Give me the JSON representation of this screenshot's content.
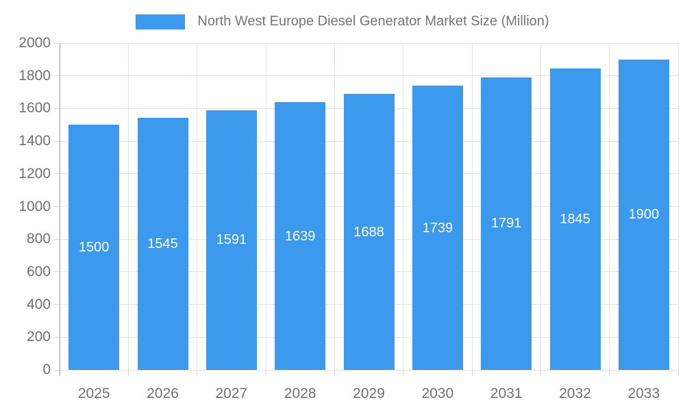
{
  "chart_data": {
    "type": "bar",
    "title": "North West Europe Diesel Generator Market Size (Million)",
    "series_name": "North West Europe Diesel Generator Market Size (Million)",
    "categories": [
      "2025",
      "2026",
      "2027",
      "2028",
      "2029",
      "2030",
      "2031",
      "2032",
      "2033"
    ],
    "values": [
      1500,
      1545,
      1591,
      1639,
      1688,
      1739,
      1791,
      1845,
      1900
    ],
    "xlabel": "",
    "ylabel": "",
    "ylim": [
      0,
      2000
    ],
    "ytick_step": 200,
    "grid": true,
    "legend_position": "top",
    "value_labels": "inside-center"
  },
  "colors": {
    "bar": "#3b99ee",
    "value_label": "#ffffff",
    "axis_label": "#707070",
    "title": "#757575",
    "grid": "#e3e3e3",
    "tick": "#d6d6d6",
    "axis_line": "#9b9b9b",
    "background": "#ffffff"
  }
}
